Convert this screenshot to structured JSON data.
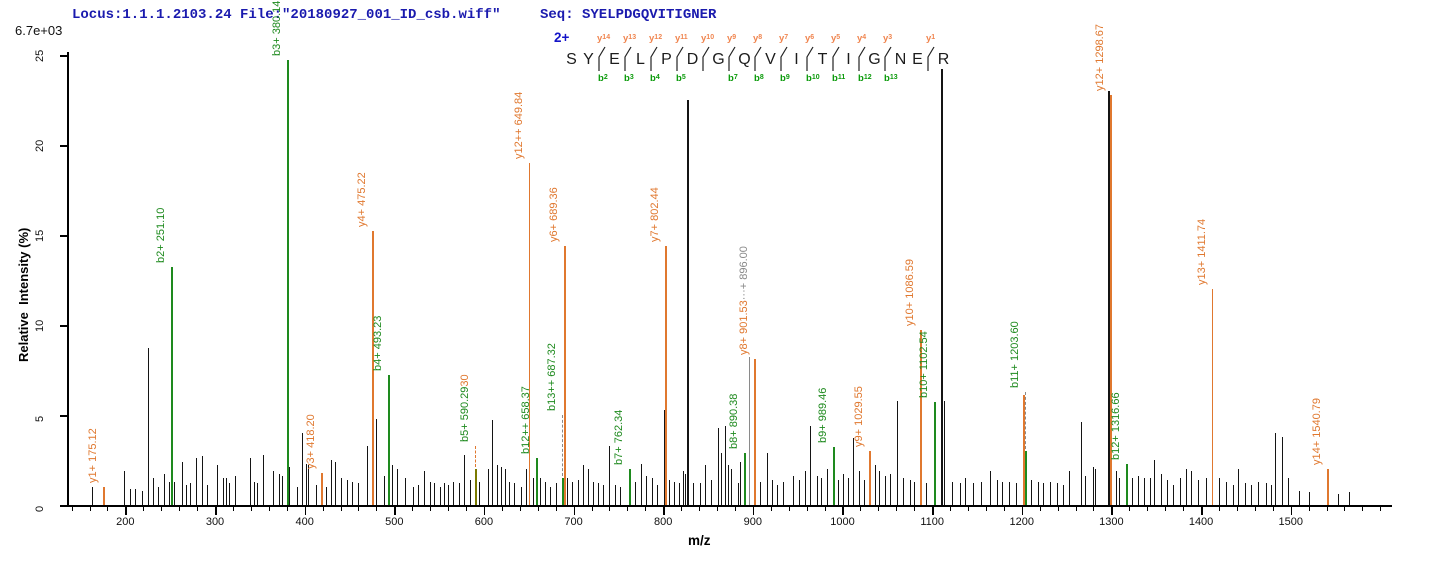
{
  "header": {
    "locus_file": "Locus:1.1.1.2103.24 File:\"20180927_001_ID_csb.wiff\"",
    "seq": "Seq: SYELPDGQVITIGNER",
    "intensity_max": "6.7e+03",
    "charge_state": "2+"
  },
  "axes": {
    "y_title": "Relative  Intensity (%)",
    "x_title": "m/z",
    "y_ticks": [
      0,
      5,
      10,
      15,
      20,
      25
    ],
    "x_major_ticks": [
      200,
      300,
      400,
      500,
      600,
      700,
      800,
      900,
      1000,
      1100,
      1200,
      1300,
      1400,
      1500
    ],
    "x_minor_step": 20,
    "x_range": [
      136,
      1613
    ],
    "y_range_pct": [
      0,
      25
    ]
  },
  "colors": {
    "y": "#e0782f",
    "b": "#1e8a1e",
    "y_seq": "#f0854f",
    "b_seq": "#0a9a0a",
    "gray": "#8a8a8a",
    "black": "#141414",
    "olive": "#7a7a00",
    "header_blue": "#1a1aae"
  },
  "peptide": {
    "sequence": "SYELPDGQVITIGNER",
    "tokens": [
      {
        "r": "S"
      },
      {
        "r": "Y"
      },
      {
        "cut": {
          "y": "y14",
          "b": "b2"
        }
      },
      {
        "r": "E"
      },
      {
        "cut": {
          "y": "y13",
          "b": "b3"
        }
      },
      {
        "r": "L"
      },
      {
        "cut": {
          "y": "y12",
          "b": "b4"
        }
      },
      {
        "r": "P"
      },
      {
        "cut": {
          "y": "y11",
          "b": "b5"
        }
      },
      {
        "r": "D"
      },
      {
        "cut": {
          "y": "y10",
          "b": ""
        }
      },
      {
        "r": "G"
      },
      {
        "cut": {
          "y": "y9",
          "b": "b7"
        }
      },
      {
        "r": "Q"
      },
      {
        "cut": {
          "y": "y8",
          "b": "b8"
        }
      },
      {
        "r": "V"
      },
      {
        "cut": {
          "y": "y7",
          "b": "b9"
        }
      },
      {
        "r": "I"
      },
      {
        "cut": {
          "y": "y6",
          "b": "b10"
        }
      },
      {
        "r": "T"
      },
      {
        "cut": {
          "y": "y5",
          "b": "b11"
        }
      },
      {
        "r": "I"
      },
      {
        "cut": {
          "y": "y4",
          "b": "b12"
        }
      },
      {
        "r": "G"
      },
      {
        "cut": {
          "y": "y3",
          "b": "b13"
        }
      },
      {
        "r": "N"
      },
      {
        "r": "E"
      },
      {
        "cut": {
          "y": "y1",
          "b": ""
        }
      },
      {
        "r": "R"
      }
    ]
  },
  "chart_data": {
    "type": "bar",
    "subtype": "ms2-stick-spectrum",
    "title": "Locus:1.1.1.2103.24 File:\"20180927_001_ID_csb.wiff\"  Seq: SYELPDGQVITIGNER",
    "xlabel": "m/z",
    "ylabel": "Relative Intensity (%)",
    "xlim": [
      136,
      1613
    ],
    "ylim": [
      0,
      25
    ],
    "base_peak_intensity": "6.7e+03",
    "precursor_charge": "2+",
    "annotated_peaks": [
      {
        "label": "y1+ 175.12",
        "mz": 175.12,
        "pct": 1.0,
        "series": "y"
      },
      {
        "label": "b2+ 251.10",
        "mz": 251.1,
        "pct": 13.2,
        "series": "b"
      },
      {
        "label": "b3+ 380.14",
        "mz": 380.14,
        "pct": 24.7,
        "series": "b"
      },
      {
        "label": "y3+ 418.20",
        "mz": 418.2,
        "pct": 1.8,
        "series": "y"
      },
      {
        "label": "y4+ 475.22",
        "mz": 475.22,
        "pct": 15.2,
        "series": "y"
      },
      {
        "label": "b4+ 493.23",
        "mz": 493.23,
        "pct": 7.2,
        "series": "b"
      },
      {
        "label": "b5+ 590.29",
        "mz": 590.29,
        "pct": 2.0,
        "series": "b",
        "line_color": "olive",
        "label_parts": [
          {
            "text": "b5+ 590.29",
            "color": "b"
          },
          {
            "text": "30",
            "color": "y"
          }
        ],
        "label_offset_pct": 3.3,
        "leader": "dashed",
        "leader_color": "y"
      },
      {
        "label": "y12++ 649.84",
        "mz": 649.84,
        "pct": 19.0,
        "series": "y"
      },
      {
        "label": "b12++ 658.37",
        "mz": 658.37,
        "pct": 2.6,
        "series": "b"
      },
      {
        "label": "b13++ 687.32",
        "mz": 687.32,
        "pct": 1.5,
        "series": "b",
        "label_offset_pct": 5.0,
        "leader": "dashed",
        "leader_color": "gray"
      },
      {
        "label": "y6+ 689.36",
        "mz": 689.36,
        "pct": 14.4,
        "series": "y"
      },
      {
        "label": "b7+ 762.34",
        "mz": 762.34,
        "pct": 2.0,
        "series": "b"
      },
      {
        "label": "y7+ 802.44",
        "mz": 802.44,
        "pct": 14.4,
        "series": "y"
      },
      {
        "label": "b8+ 890.38",
        "mz": 890.38,
        "pct": 2.9,
        "series": "b"
      },
      {
        "label": "y8+ 901.53",
        "mz": 901.53,
        "pct": 8.1,
        "series": "y",
        "label_parts": [
          {
            "text": "y8+ 901.53",
            "color": "y"
          },
          {
            "text": "···+ 896.00",
            "color": "gray"
          }
        ]
      },
      {
        "label": "b9+ 989.46",
        "mz": 989.46,
        "pct": 3.2,
        "series": "b"
      },
      {
        "label": "y9+ 1029.55",
        "mz": 1029.55,
        "pct": 3.0,
        "series": "y"
      },
      {
        "label": "y10+ 1086.59",
        "mz": 1086.59,
        "pct": 9.7,
        "series": "y"
      },
      {
        "label": "b10+ 1102.54",
        "mz": 1102.54,
        "pct": 5.7,
        "series": "b"
      },
      {
        "label": "b11+ 1203.60",
        "mz": 1203.6,
        "pct": 3.0,
        "series": "b",
        "label_offset_pct": 6.3,
        "leader": "dashed",
        "leader_color": "gray",
        "extra_line": {
          "color": "y",
          "pct": 6.1,
          "dx": -2
        }
      },
      {
        "label": "y12+ 1298.67",
        "mz": 1298.67,
        "pct": 22.8,
        "series": "y"
      },
      {
        "label": "b12+ 1316.66",
        "mz": 1316.66,
        "pct": 2.3,
        "series": "b"
      },
      {
        "label": "y13+ 1411.74",
        "mz": 1411.74,
        "pct": 12.0,
        "series": "y"
      },
      {
        "label": "y14+ 1540.79",
        "mz": 1540.79,
        "pct": 2.0,
        "series": "y"
      }
    ],
    "unassigned_labeled_peak": {
      "label": "896.00",
      "mz": 896.0,
      "pct": 8.2,
      "color": "gray"
    },
    "special_black_peaks": [
      [
        225.3,
        8.7
      ],
      [
        801.0,
        5.3
      ],
      [
        827.0,
        22.5
      ],
      [
        1109.5,
        24.2
      ],
      [
        1113.0,
        5.8
      ],
      [
        1296.5,
        23.0
      ]
    ],
    "noise_peaks": [
      [
        163,
        1.0
      ],
      [
        199,
        1.9
      ],
      [
        205,
        0.9
      ],
      [
        211,
        0.9
      ],
      [
        219,
        0.8
      ],
      [
        231,
        1.5
      ],
      [
        236,
        1.0
      ],
      [
        243,
        1.7
      ],
      [
        249,
        1.3
      ],
      [
        254,
        1.3
      ],
      [
        263,
        2.4
      ],
      [
        268,
        1.1
      ],
      [
        272,
        1.2
      ],
      [
        279,
        2.6
      ],
      [
        285,
        2.7
      ],
      [
        291,
        1.1
      ],
      [
        302,
        2.2
      ],
      [
        309,
        1.5
      ],
      [
        312,
        1.5
      ],
      [
        316,
        1.2
      ],
      [
        322,
        1.6
      ],
      [
        339,
        2.6
      ],
      [
        343,
        1.3
      ],
      [
        347,
        1.2
      ],
      [
        353,
        2.8
      ],
      [
        365,
        1.9
      ],
      [
        371,
        1.7
      ],
      [
        375,
        1.6
      ],
      [
        383,
        2.1
      ],
      [
        391,
        1.0
      ],
      [
        397,
        4.0
      ],
      [
        401,
        2.3
      ],
      [
        404,
        2.2
      ],
      [
        413,
        1.1
      ],
      [
        424,
        1.0
      ],
      [
        429,
        2.5
      ],
      [
        434,
        2.4
      ],
      [
        441,
        1.5
      ],
      [
        447,
        1.4
      ],
      [
        453,
        1.3
      ],
      [
        459,
        1.2
      ],
      [
        470,
        3.3
      ],
      [
        480,
        4.8
      ],
      [
        489,
        1.6
      ],
      [
        497,
        2.2
      ],
      [
        503,
        2.0
      ],
      [
        512,
        1.5
      ],
      [
        521,
        1.0
      ],
      [
        527,
        1.1
      ],
      [
        533,
        1.9
      ],
      [
        540,
        1.3
      ],
      [
        544,
        1.2
      ],
      [
        551,
        1.0
      ],
      [
        556,
        1.2
      ],
      [
        560,
        1.1
      ],
      [
        566,
        1.3
      ],
      [
        572,
        1.2
      ],
      [
        578,
        2.8
      ],
      [
        585,
        1.4
      ],
      [
        595,
        1.3
      ],
      [
        604,
        2.0
      ],
      [
        609,
        4.7
      ],
      [
        615,
        2.2
      ],
      [
        619,
        2.1
      ],
      [
        624,
        2.0
      ],
      [
        628,
        1.3
      ],
      [
        634,
        1.2
      ],
      [
        641,
        1.0
      ],
      [
        647,
        2.0
      ],
      [
        655,
        1.5
      ],
      [
        663,
        1.5
      ],
      [
        668,
        1.3
      ],
      [
        674,
        1.0
      ],
      [
        680,
        1.2
      ],
      [
        693,
        1.5
      ],
      [
        698,
        1.3
      ],
      [
        705,
        1.4
      ],
      [
        711,
        2.2
      ],
      [
        716,
        2.0
      ],
      [
        722,
        1.3
      ],
      [
        727,
        1.2
      ],
      [
        733,
        1.1
      ],
      [
        739,
        3.3
      ],
      [
        746,
        1.1
      ],
      [
        752,
        1.0
      ],
      [
        768,
        1.3
      ],
      [
        775,
        2.3
      ],
      [
        781,
        1.6
      ],
      [
        787,
        1.5
      ],
      [
        793,
        1.1
      ],
      [
        806,
        1.4
      ],
      [
        812,
        1.3
      ],
      [
        818,
        1.2
      ],
      [
        822,
        1.9
      ],
      [
        824,
        1.7
      ],
      [
        833,
        1.2
      ],
      [
        841,
        1.2
      ],
      [
        847,
        2.2
      ],
      [
        853,
        1.4
      ],
      [
        861,
        4.3
      ],
      [
        864,
        2.9
      ],
      [
        869,
        4.4
      ],
      [
        872,
        2.2
      ],
      [
        876,
        2.0
      ],
      [
        883,
        1.2
      ],
      [
        886,
        2.4
      ],
      [
        891,
        2.2
      ],
      [
        908,
        1.3
      ],
      [
        916,
        2.9
      ],
      [
        921,
        1.4
      ],
      [
        927,
        1.1
      ],
      [
        934,
        1.3
      ],
      [
        945,
        1.6
      ],
      [
        952,
        1.4
      ],
      [
        958,
        1.9
      ],
      [
        964,
        4.4
      ],
      [
        971,
        1.6
      ],
      [
        976,
        1.5
      ],
      [
        983,
        2.0
      ],
      [
        995,
        1.4
      ],
      [
        1001,
        1.7
      ],
      [
        1006,
        1.5
      ],
      [
        1012,
        3.7
      ],
      [
        1018,
        1.9
      ],
      [
        1024,
        1.4
      ],
      [
        1036,
        2.2
      ],
      [
        1041,
        1.9
      ],
      [
        1047,
        1.6
      ],
      [
        1053,
        1.7
      ],
      [
        1061,
        5.8
      ],
      [
        1068,
        1.5
      ],
      [
        1075,
        1.4
      ],
      [
        1080,
        1.3
      ],
      [
        1093,
        1.2
      ],
      [
        1122,
        1.3
      ],
      [
        1131,
        1.2
      ],
      [
        1137,
        1.5
      ],
      [
        1146,
        1.2
      ],
      [
        1155,
        1.3
      ],
      [
        1164,
        1.9
      ],
      [
        1172,
        1.4
      ],
      [
        1178,
        1.3
      ],
      [
        1186,
        1.3
      ],
      [
        1193,
        1.2
      ],
      [
        1210,
        1.4
      ],
      [
        1218,
        1.3
      ],
      [
        1224,
        1.2
      ],
      [
        1231,
        1.3
      ],
      [
        1239,
        1.2
      ],
      [
        1246,
        1.1
      ],
      [
        1253,
        1.9
      ],
      [
        1266,
        4.6
      ],
      [
        1271,
        1.6
      ],
      [
        1279,
        2.1
      ],
      [
        1282,
        2.0
      ],
      [
        1305,
        1.9
      ],
      [
        1309,
        1.5
      ],
      [
        1323,
        1.5
      ],
      [
        1330,
        1.6
      ],
      [
        1336,
        1.5
      ],
      [
        1343,
        1.5
      ],
      [
        1347,
        2.5
      ],
      [
        1355,
        1.7
      ],
      [
        1362,
        1.4
      ],
      [
        1369,
        1.1
      ],
      [
        1377,
        1.5
      ],
      [
        1383,
        2.0
      ],
      [
        1389,
        1.9
      ],
      [
        1397,
        1.4
      ],
      [
        1406,
        1.5
      ],
      [
        1420,
        1.5
      ],
      [
        1428,
        1.3
      ],
      [
        1436,
        1.1
      ],
      [
        1441,
        2.0
      ],
      [
        1449,
        1.2
      ],
      [
        1456,
        1.1
      ],
      [
        1464,
        1.3
      ],
      [
        1472,
        1.2
      ],
      [
        1478,
        1.1
      ],
      [
        1483,
        4.0
      ],
      [
        1490,
        3.8
      ],
      [
        1497,
        1.5
      ],
      [
        1509,
        0.8
      ],
      [
        1520,
        0.7
      ],
      [
        1553,
        0.6
      ],
      [
        1565,
        0.7
      ]
    ]
  }
}
